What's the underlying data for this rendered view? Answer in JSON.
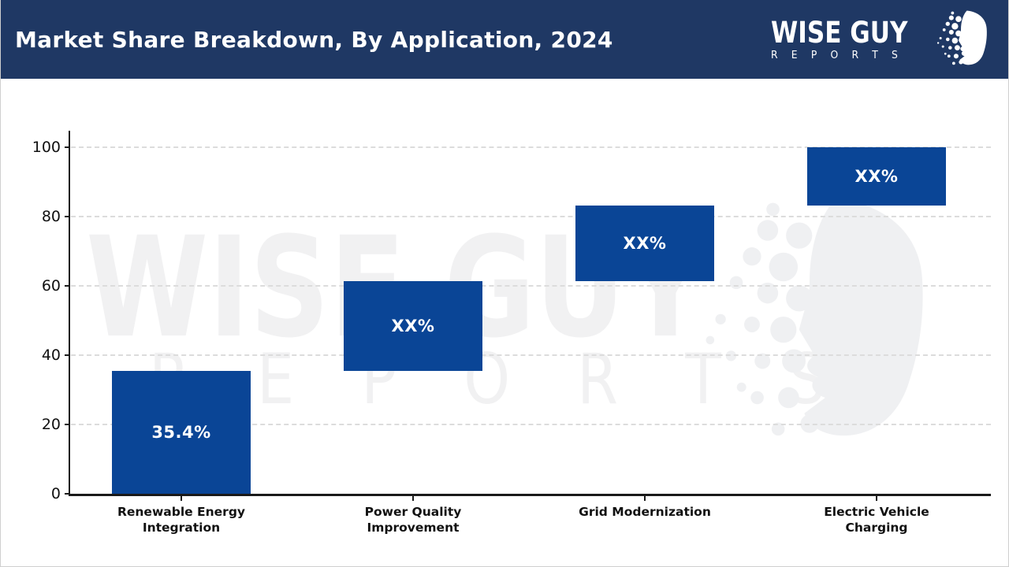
{
  "header": {
    "title": "Market Share Breakdown, By Application, 2024",
    "logo": {
      "wordmark": "WISE GUY",
      "reports_label": "R E P O R T S",
      "face_icon": "dotted-face-profile-icon"
    }
  },
  "watermark": {
    "wordmark": "WISE GUY",
    "reports_label": "R E P O R T S",
    "face_icon": "dotted-face-profile-watermark"
  },
  "colors": {
    "header_bg": "#1f3864",
    "header_text": "#ffffff",
    "bar": "#0a4596",
    "bar_label": "#ffffff",
    "axis": "#1a1a1a",
    "grid": "#dcdcdc",
    "tick_label": "#111111",
    "category_label": "#111111",
    "watermark": "#f1f1f2",
    "canvas_bg": "#ffffff",
    "frame_border": "#cfcfcf"
  },
  "chart_data": {
    "type": "bar",
    "subtype": "waterfall",
    "title": "Market Share Breakdown, By Application, 2024",
    "categories": [
      [
        "Renewable Energy",
        "Integration"
      ],
      [
        "Power Quality",
        "Improvement"
      ],
      [
        "Grid Modernization"
      ],
      [
        "Electric Vehicle",
        "Charging"
      ]
    ],
    "segments": [
      {
        "category": "Renewable Energy Integration",
        "start": 0,
        "end": 35.4,
        "label": "35.4%"
      },
      {
        "category": "Power Quality Improvement",
        "start": 35.4,
        "end": 61.4,
        "label": "XX%"
      },
      {
        "category": "Grid Modernization",
        "start": 61.4,
        "end": 83.2,
        "label": "XX%"
      },
      {
        "category": "Electric Vehicle Charging",
        "start": 83.2,
        "end": 100,
        "label": "XX%"
      }
    ],
    "yticks": [
      0,
      20,
      40,
      60,
      80,
      100
    ],
    "ylim": [
      0,
      100
    ],
    "xlabel": "",
    "ylabel": "",
    "grid": "horizontal-dashed",
    "legend": "none"
  }
}
